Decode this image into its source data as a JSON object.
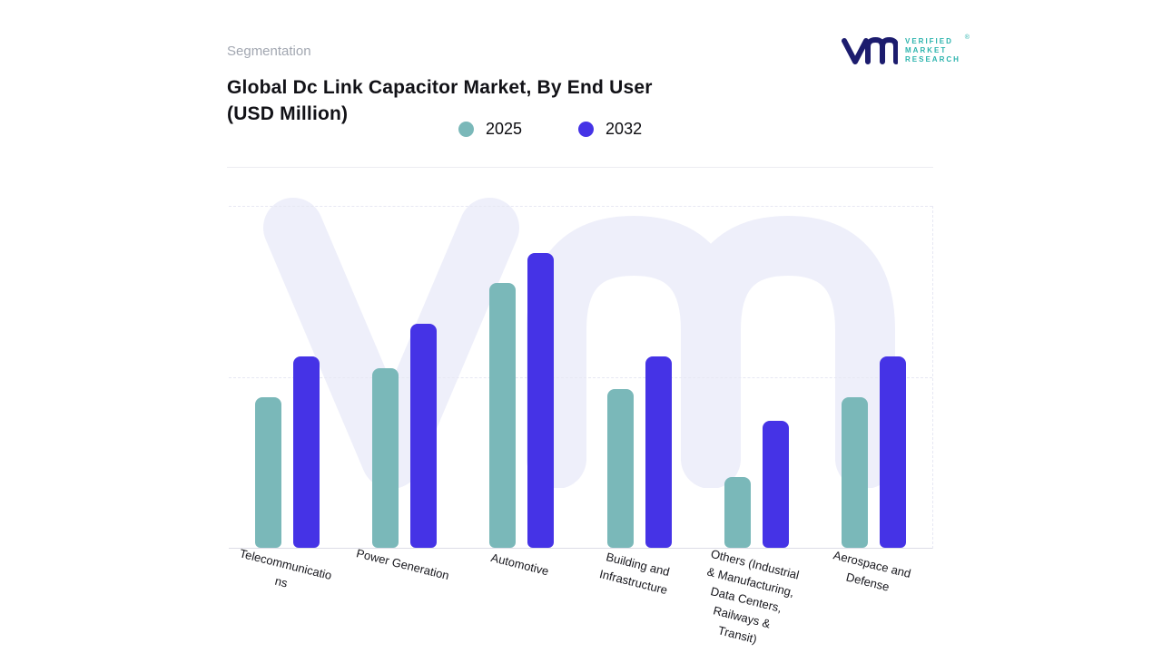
{
  "header": {
    "eyebrow": "Segmentation",
    "title_line1": "Global Dc Link Capacitor Market, By End User",
    "title_line2": "(USD Million)"
  },
  "logo": {
    "brand_line1": "VERIFIED",
    "brand_line2": "MARKET",
    "brand_line3": "RESEARCH",
    "reg_mark": "®",
    "glyph_color": "#1c1c6e",
    "text_color": "#2bb3ad"
  },
  "legend": [
    {
      "label": "2025",
      "color": "#7ab8b9"
    },
    {
      "label": "2032",
      "color": "#4533e6"
    }
  ],
  "chart_data": {
    "type": "bar",
    "title": "Global Dc Link Capacitor Market, By End User (USD Million)",
    "xlabel": "",
    "ylabel": "",
    "categories": [
      "Telecommunications",
      "Power Generation",
      "Automotive",
      "Building and Infrastructure",
      "Others  (Industrial & Manufacturing, Data Centers, Railways & Transit)",
      "Aerospace and Defense"
    ],
    "series": [
      {
        "name": "2025",
        "color": "#7ab8b9",
        "values": [
          51,
          61,
          90,
          54,
          24,
          51
        ]
      },
      {
        "name": "2032",
        "color": "#4533e6",
        "values": [
          65,
          76,
          100,
          65,
          43,
          65
        ]
      }
    ],
    "ylim": [
      0,
      116
    ],
    "grid": "horizontal-dashed",
    "legend_position": "top",
    "value_scale": "relative, 100 = largest bar (Automotive 2032); axis unlabeled in source"
  }
}
